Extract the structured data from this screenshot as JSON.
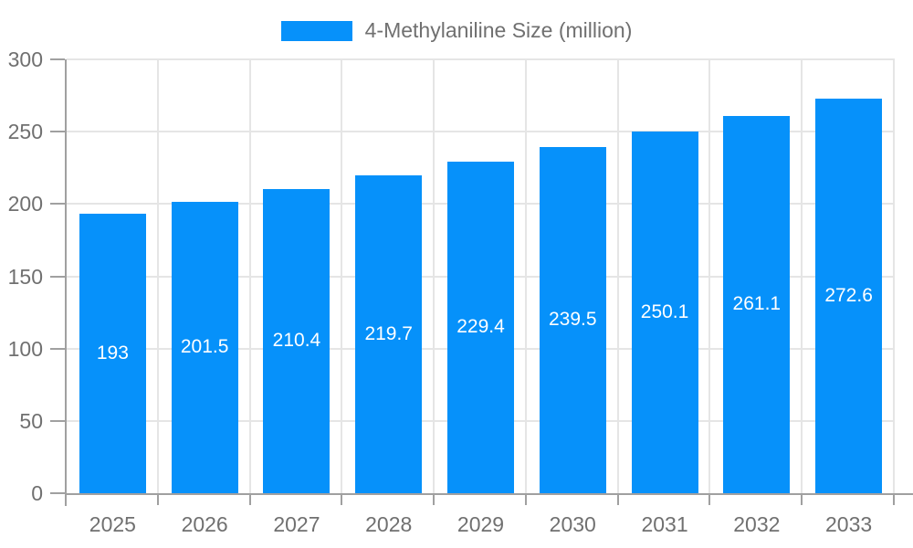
{
  "chart_data": {
    "type": "bar",
    "title": "4-Methylaniline Size (million)",
    "legend": {
      "label": "4-Methylaniline Size (million)",
      "position": "top-center"
    },
    "categories": [
      "2025",
      "2026",
      "2027",
      "2028",
      "2029",
      "2030",
      "2031",
      "2032",
      "2033"
    ],
    "series": [
      {
        "name": "4-Methylaniline Size (million)",
        "values": [
          193,
          201.5,
          210.4,
          219.7,
          229.4,
          239.5,
          250.1,
          261.1,
          272.6
        ]
      }
    ],
    "value_labels": [
      "193",
      "201.5",
      "210.4",
      "219.7",
      "229.4",
      "239.5",
      "250.1",
      "261.1",
      "272.6"
    ],
    "xlabel": "",
    "ylabel": "",
    "ylim": [
      0,
      300
    ],
    "ytick_step": 50,
    "ytick_labels": [
      "0",
      "50",
      "100",
      "150",
      "200",
      "250",
      "300"
    ],
    "grid": true,
    "value_label_position": "inside-center",
    "colors": {
      "bar": "#0691fa",
      "grid_line": "#e5e5e5",
      "axis_line": "#a0a0a0",
      "axis_text": "#707070",
      "value_label": "#ffffff",
      "background": "#ffffff"
    }
  }
}
